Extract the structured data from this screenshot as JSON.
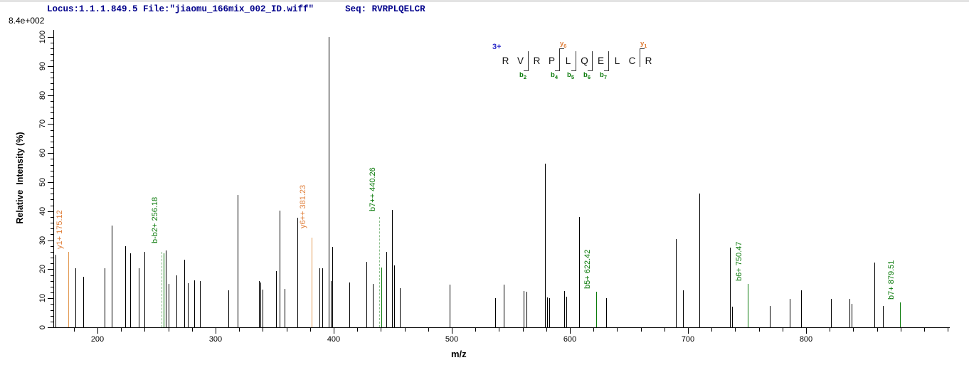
{
  "header": {
    "file_info": "Locus:1.1.1.849.5 File:\"jiaomu_166mix_002_ID.wiff\"",
    "seq_info": "Seq: RVRPLQELCR"
  },
  "intensity_scale": "8.4e+002",
  "peptide": {
    "charge": "3+",
    "residues": [
      "R",
      "V",
      "R",
      "P",
      "L",
      "Q",
      "E",
      "L",
      "C",
      "R"
    ],
    "cleavages": [
      {
        "after_index": 1,
        "b": "b2"
      },
      {
        "after_index": 3,
        "b": "b4",
        "y": "y6"
      },
      {
        "after_index": 4,
        "b": "b5"
      },
      {
        "after_index": 5,
        "b": "b6"
      },
      {
        "after_index": 6,
        "b": "b7"
      },
      {
        "after_index": 8,
        "y": "y1"
      }
    ]
  },
  "chart_data": {
    "type": "stick",
    "title": "",
    "xlabel": "m/z",
    "ylabel": "Relative  Intensity (%)",
    "base_peak_intensity": "8.4e+002",
    "x_axis": {
      "min": 163,
      "max": 921,
      "tick_labels": [
        200,
        300,
        400,
        500,
        600,
        700,
        800
      ],
      "minor_step": 20,
      "minor_start": 180
    },
    "y_axis": {
      "min": 0,
      "max": 100,
      "major_step": 10,
      "minor_step": 2,
      "tick_labels": [
        0,
        10,
        20,
        30,
        40,
        50,
        60,
        70,
        80,
        90,
        100
      ]
    },
    "legend": "none",
    "grid": false,
    "colors": {
      "peak": "#000000",
      "b_ion": "#0a7a0a",
      "b_ion_label": "#0a7a0a",
      "b_ion_dash": "#8cbf8c",
      "y_ion": "#e39a52",
      "y_ion_label": "#e07f3a"
    },
    "peaks": [
      {
        "mz": 164.5,
        "pct": 25
      },
      {
        "mz": 175.12,
        "pct": 26,
        "ion": "y",
        "label": "y1+ 175.12"
      },
      {
        "mz": 181.5,
        "pct": 20.3
      },
      {
        "mz": 188,
        "pct": 17.5
      },
      {
        "mz": 206,
        "pct": 20.3
      },
      {
        "mz": 212,
        "pct": 35
      },
      {
        "mz": 223.5,
        "pct": 28
      },
      {
        "mz": 228,
        "pct": 25.5
      },
      {
        "mz": 235,
        "pct": 20.3
      },
      {
        "mz": 239.5,
        "pct": 26
      },
      {
        "mz": 256.18,
        "pct": 25.5,
        "ion": "b",
        "label": "b-b2+ 256.18",
        "dash_pct": 26,
        "label_pct": 28
      },
      {
        "mz": 258,
        "pct": 26.5
      },
      {
        "mz": 260.5,
        "pct": 15
      },
      {
        "mz": 267,
        "pct": 17.8
      },
      {
        "mz": 273.5,
        "pct": 23.3
      },
      {
        "mz": 276.5,
        "pct": 15.3
      },
      {
        "mz": 282,
        "pct": 16.2
      },
      {
        "mz": 286.5,
        "pct": 16
      },
      {
        "mz": 311,
        "pct": 12.8
      },
      {
        "mz": 318.7,
        "pct": 45.5
      },
      {
        "mz": 336.5,
        "pct": 16
      },
      {
        "mz": 338,
        "pct": 15.5
      },
      {
        "mz": 339.5,
        "pct": 13
      },
      {
        "mz": 351,
        "pct": 19.3
      },
      {
        "mz": 354,
        "pct": 40.3
      },
      {
        "mz": 358.5,
        "pct": 13.3
      },
      {
        "mz": 369,
        "pct": 37.8
      },
      {
        "mz": 381.23,
        "pct": 31,
        "ion": "y",
        "label": "y6++ 381.23",
        "label_pct": 33
      },
      {
        "mz": 388,
        "pct": 20.3
      },
      {
        "mz": 390.5,
        "pct": 20.3
      },
      {
        "mz": 396,
        "pct": 100
      },
      {
        "mz": 397.5,
        "pct": 16
      },
      {
        "mz": 399,
        "pct": 27.6
      },
      {
        "mz": 413,
        "pct": 15.5
      },
      {
        "mz": 427.5,
        "pct": 22.5
      },
      {
        "mz": 433,
        "pct": 15
      },
      {
        "mz": 440.26,
        "pct": 20.5,
        "ion": "b",
        "label": "b7++ 440.26",
        "dash_pct": 38,
        "label_pct": 39
      },
      {
        "mz": 444.5,
        "pct": 26
      },
      {
        "mz": 449.3,
        "pct": 40.5
      },
      {
        "mz": 451.5,
        "pct": 21.3
      },
      {
        "mz": 456,
        "pct": 13.5
      },
      {
        "mz": 498,
        "pct": 14.7
      },
      {
        "mz": 537,
        "pct": 10
      },
      {
        "mz": 544,
        "pct": 14.7
      },
      {
        "mz": 561,
        "pct": 12.5
      },
      {
        "mz": 563,
        "pct": 12.3
      },
      {
        "mz": 579,
        "pct": 56.4
      },
      {
        "mz": 580.5,
        "pct": 10.3
      },
      {
        "mz": 582.5,
        "pct": 10
      },
      {
        "mz": 595,
        "pct": 12.6
      },
      {
        "mz": 597,
        "pct": 10.5
      },
      {
        "mz": 608,
        "pct": 38
      },
      {
        "mz": 622.42,
        "pct": 12.3,
        "ion": "b",
        "label": "b5+ 622.42"
      },
      {
        "mz": 631,
        "pct": 10.1
      },
      {
        "mz": 690,
        "pct": 30.4
      },
      {
        "mz": 696,
        "pct": 12.8
      },
      {
        "mz": 709.5,
        "pct": 46
      },
      {
        "mz": 735.5,
        "pct": 27.5
      },
      {
        "mz": 737.5,
        "pct": 7
      },
      {
        "mz": 750.47,
        "pct": 15,
        "ion": "b",
        "label": "b6+ 750.47"
      },
      {
        "mz": 769,
        "pct": 7.3
      },
      {
        "mz": 786,
        "pct": 9.8
      },
      {
        "mz": 795.5,
        "pct": 12.8
      },
      {
        "mz": 821,
        "pct": 9.7
      },
      {
        "mz": 837,
        "pct": 9.7
      },
      {
        "mz": 838.5,
        "pct": 8
      },
      {
        "mz": 858,
        "pct": 22.3
      },
      {
        "mz": 865,
        "pct": 7.3
      },
      {
        "mz": 879.51,
        "pct": 8.5,
        "ion": "b",
        "label": "b7+ 879.51"
      }
    ]
  }
}
